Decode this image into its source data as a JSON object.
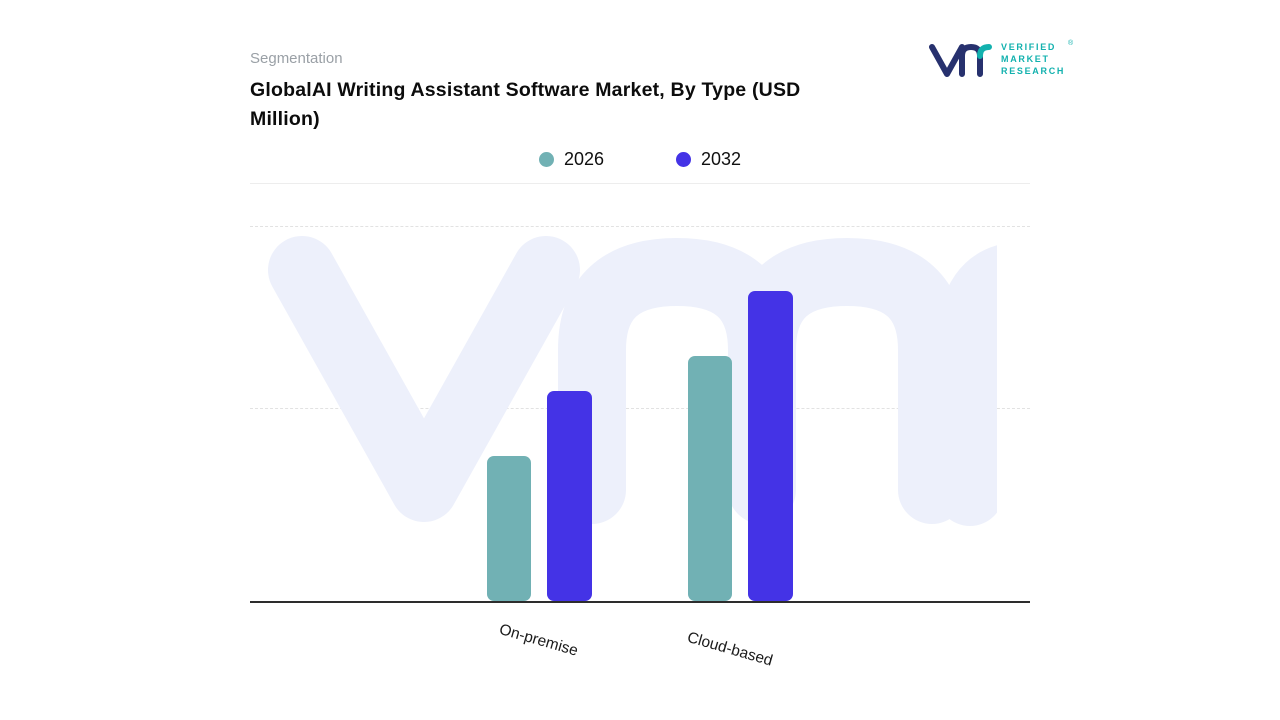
{
  "page": {
    "background": "#ffffff"
  },
  "header": {
    "eyebrow": "Segmentation",
    "title": "GlobalAI Writing Assistant Software Market, By Type (USD Million)"
  },
  "brand": {
    "lines": [
      "VERIFIED",
      "MARKET",
      "RESEARCH"
    ],
    "registered_mark": "®",
    "teal": "#12b1ae",
    "navy": "#27316e"
  },
  "legend": [
    {
      "label": "2026",
      "color": "#71b1b4"
    },
    {
      "label": "2032",
      "color": "#4433e6"
    }
  ],
  "chart_data": {
    "type": "bar",
    "title": "GlobalAI Writing Assistant Software Market, By Type (USD Million)",
    "unit": "USD Million",
    "categories": [
      "On-premise",
      "Cloud-based"
    ],
    "series": [
      {
        "name": "2026",
        "color": "#71b1b4",
        "values": [
          145,
          245
        ]
      },
      {
        "name": "2032",
        "color": "#4433e6",
        "values": [
          210,
          310
        ]
      }
    ],
    "ylim": [
      0,
      375
    ],
    "yaxis_visible": false,
    "value_labels": false,
    "grid": "horizontal-dashed",
    "legend_position": "top-center",
    "watermark": "vmr"
  }
}
